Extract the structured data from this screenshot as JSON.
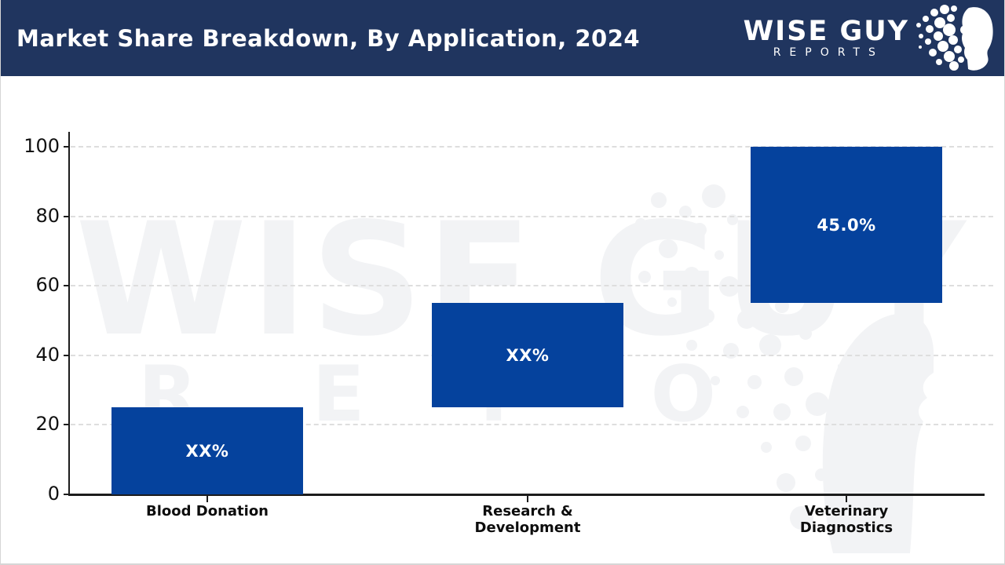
{
  "header": {
    "title": "Market Share Breakdown, By Application, 2024",
    "bg_color": "#20355f",
    "logo": {
      "line1": "WISE GUY",
      "line2": "REPORTS"
    }
  },
  "watermark": {
    "line1": "WISE GUY",
    "line2": "REPORTS"
  },
  "chart_data": {
    "type": "bar",
    "subtype": "floating-stacked-breakdown",
    "title": "Market Share Breakdown, By Application, 2024",
    "categories": [
      {
        "lines": [
          "Blood Donation"
        ]
      },
      {
        "lines": [
          "Research &",
          "Development"
        ]
      },
      {
        "lines": [
          "Veterinary",
          "Diagnostics"
        ]
      }
    ],
    "segments": [
      {
        "category": "Blood Donation",
        "start": 0,
        "end": 25,
        "value": 25,
        "label": "XX%"
      },
      {
        "category": "Research & Development",
        "start": 25,
        "end": 55,
        "value": 30,
        "label": "XX%"
      },
      {
        "category": "Veterinary Diagnostics",
        "start": 55,
        "end": 100,
        "value": 45,
        "label": "45.0%"
      }
    ],
    "bar_color": "#05429d",
    "bar_label_color": "#ffffff",
    "ylim": [
      0,
      100
    ],
    "yticks": [
      0,
      20,
      40,
      60,
      80,
      100
    ],
    "xlabel": "",
    "ylabel": "",
    "grid": {
      "horizontal": true,
      "style": "dashed",
      "color": "#dedede"
    },
    "legend": null
  }
}
